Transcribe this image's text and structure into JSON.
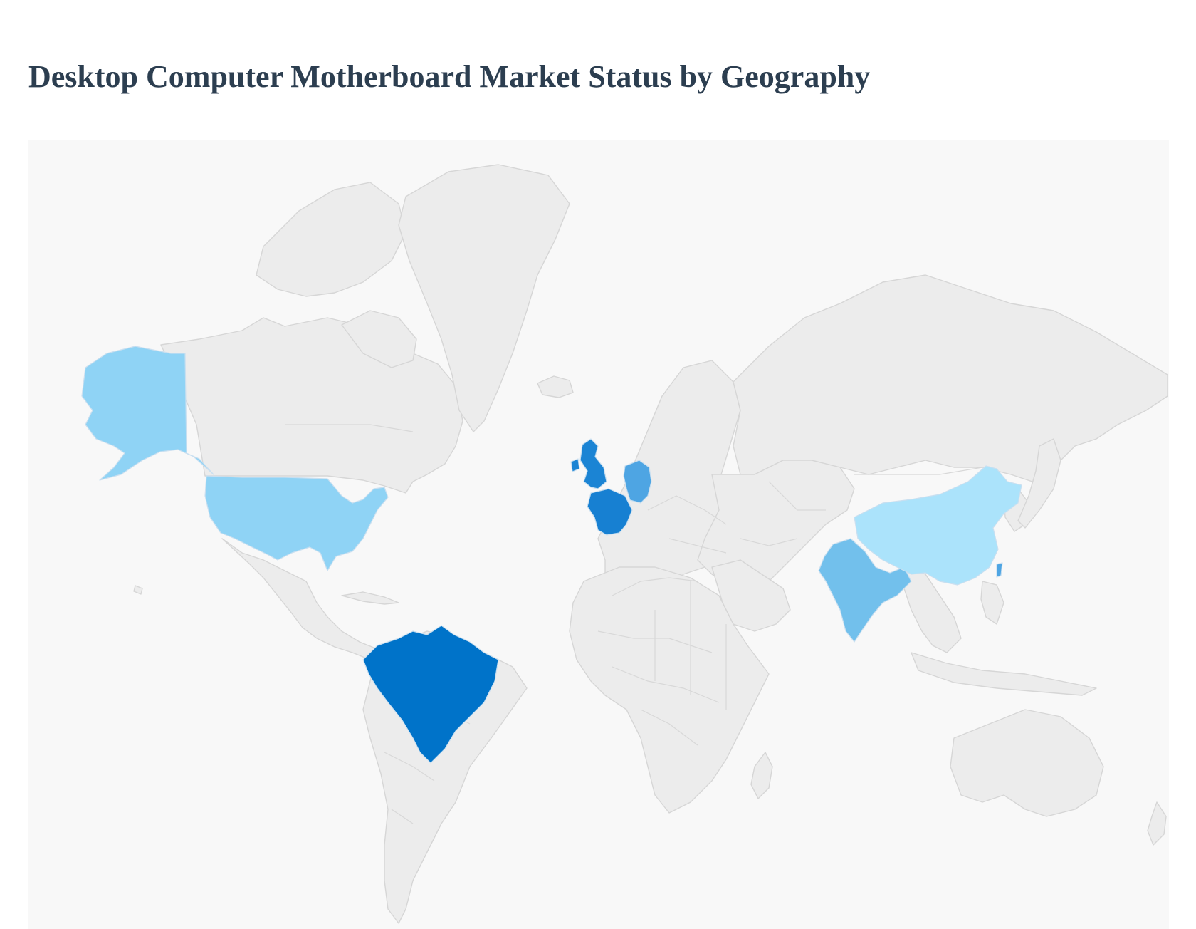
{
  "title": "Desktop Computer Motherboard Market Status by Geography",
  "map": {
    "background_color": "#f8f8f8",
    "land_color": "#ececec",
    "border_color": "#d6d6d6",
    "highlighted_countries": [
      {
        "id": "usa",
        "color": "#8fd3f5"
      },
      {
        "id": "brazil",
        "color": "#0073c9"
      },
      {
        "id": "uk",
        "color": "#1b84d4"
      },
      {
        "id": "france",
        "color": "#1780d2"
      },
      {
        "id": "germany",
        "color": "#4ea5e3"
      },
      {
        "id": "india",
        "color": "#72c0ec"
      },
      {
        "id": "china",
        "color": "#abe3fb"
      },
      {
        "id": "taiwan",
        "color": "#4ea5e3"
      }
    ]
  }
}
